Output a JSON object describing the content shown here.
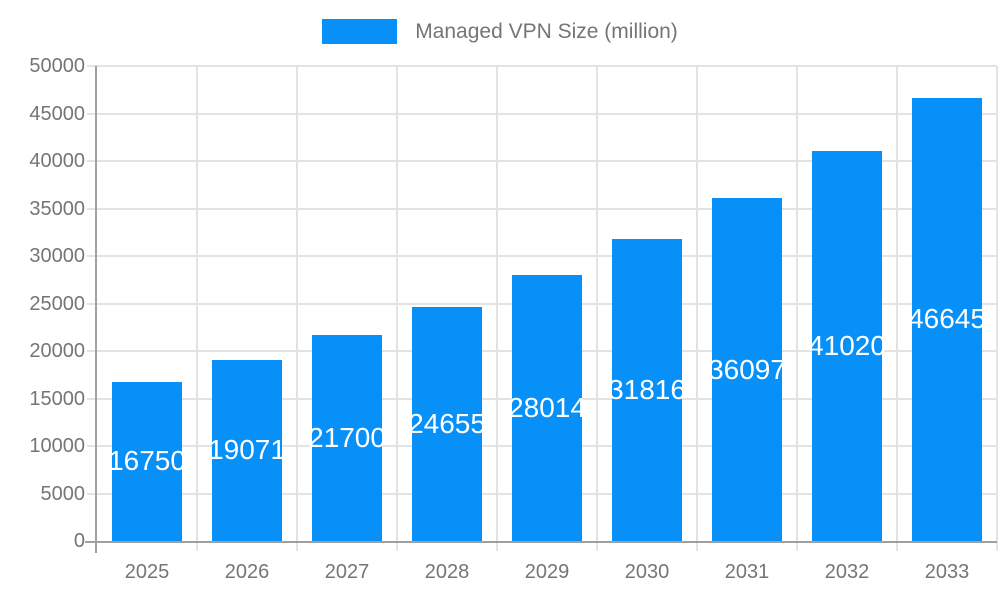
{
  "legend": {
    "label": "Managed VPN Size (million)"
  },
  "colors": {
    "bar": "#0690f8",
    "grid": "#e3e3e3",
    "axis": "#a0a0a0",
    "axis_text": "#757575",
    "value_label": "#ffffff",
    "background": "#ffffff"
  },
  "chart_data": {
    "type": "bar",
    "title": "Managed VPN Size (million)",
    "xlabel": "",
    "ylabel": "",
    "categories": [
      "2025",
      "2026",
      "2027",
      "2028",
      "2029",
      "2030",
      "2031",
      "2032",
      "2033"
    ],
    "series": [
      {
        "name": "Managed VPN Size (million)",
        "values": [
          16750,
          19071,
          21700,
          24655,
          28014,
          31816,
          36097,
          41020,
          46645
        ]
      }
    ],
    "ylim": [
      0,
      50000
    ],
    "ytick_step": 5000,
    "ytick_labels": [
      "0",
      "5000",
      "10000",
      "15000",
      "20000",
      "25000",
      "30000",
      "35000",
      "40000",
      "45000",
      "50000"
    ],
    "grid": true,
    "legend_position": "top",
    "value_labels_position": "inside-center"
  }
}
